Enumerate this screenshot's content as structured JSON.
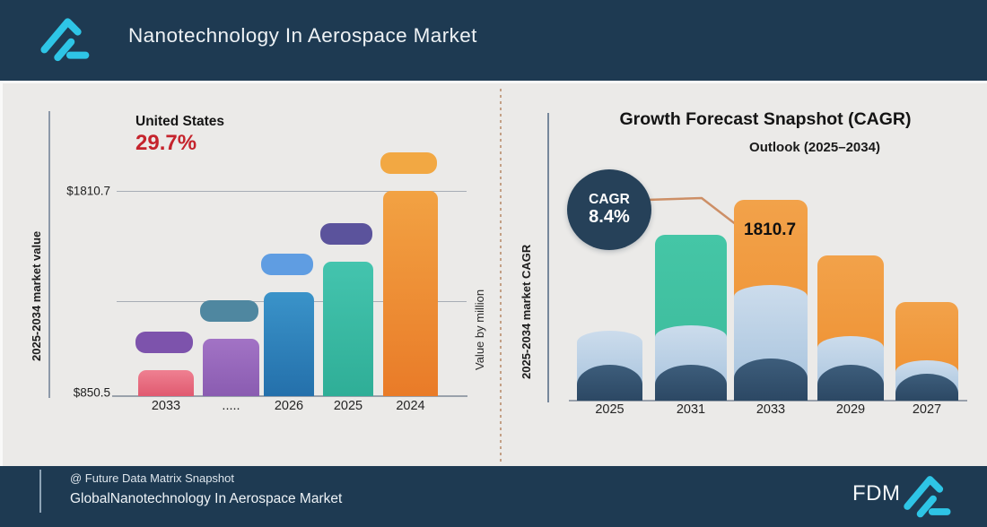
{
  "header": {
    "title": "Nanotechnology In Aerospace Market"
  },
  "footer": {
    "credit": "@ Future Data Matrix Snapshot",
    "source": "GlobalNanotechnology In Aerospace Market",
    "brand": "FDM"
  },
  "colors": {
    "header_bg": "#1e3a52",
    "panel_bg": "#ebeae8",
    "accent_red": "#c5232c",
    "logo_cyan": "#2ec5e6",
    "badge_navy": "#264159",
    "connector": "#cd8f66",
    "navy_top": "#3d5d7b",
    "navy_bottom": "#2c4864",
    "lightblue_top": "#ccdcec",
    "lightblue_bottom": "#a4c1dc",
    "teal": "#3cba9b",
    "orange_top": "#f2a24a",
    "orange_bottom": "#ee8e2e"
  },
  "chart_data": [
    {
      "id": "us-market-value",
      "type": "bar",
      "region_label": "United States",
      "highlight_value": "29.7%",
      "ylabel": "2025-2034 market value",
      "ylabel_secondary": "Value by million",
      "ylim": [
        850.5,
        1810.7
      ],
      "yticks": [
        {
          "label": "$1810.7",
          "value": 1810.7
        },
        {
          "label": "$850.5",
          "value": 850.5
        }
      ],
      "grid": true,
      "categories": [
        "2033",
        ".....",
        "2026",
        "2025",
        "2024"
      ],
      "values": [
        972,
        1120,
        1338,
        1478,
        1810.7
      ],
      "bar_colors": [
        [
          "#ef8091",
          "#e05a70"
        ],
        [
          "#a273c5",
          "#8a5cb1"
        ],
        [
          "#3a93c9",
          "#2470ab"
        ],
        [
          "#44c4ae",
          "#2fae97"
        ],
        [
          "#f2a243",
          "#e97b28"
        ]
      ],
      "cap_colors": [
        "#7d53ac",
        "#4f87a0",
        "#5f9de2",
        "#5b539c",
        "#f2a843"
      ]
    },
    {
      "id": "growth-forecast-cagr",
      "type": "stacked-bar",
      "title": "Growth Forecast Snapshot (CAGR)",
      "subtitle": "Outlook (2025–2034)",
      "ylabel": "2025-2034 market CAGR",
      "badge": {
        "label": "CAGR",
        "value": "8.4%"
      },
      "annotation": {
        "text": "1810.7",
        "category": "2033"
      },
      "categories": [
        "2025",
        "2031",
        "2033",
        "2029",
        "2027"
      ],
      "series": [
        {
          "name": "base",
          "color_key": "navy",
          "values": [
            40,
            40,
            47,
            40,
            30
          ]
        },
        {
          "name": "mid",
          "color_key": "lightblue",
          "values": [
            38,
            44,
            82,
            32,
            15
          ]
        },
        {
          "name": "top",
          "color_key": "per_bar",
          "colors_by_bar": [
            null,
            "teal",
            "orange",
            "orange",
            "orange"
          ],
          "values": [
            0,
            101,
            95,
            90,
            65
          ]
        }
      ]
    }
  ]
}
